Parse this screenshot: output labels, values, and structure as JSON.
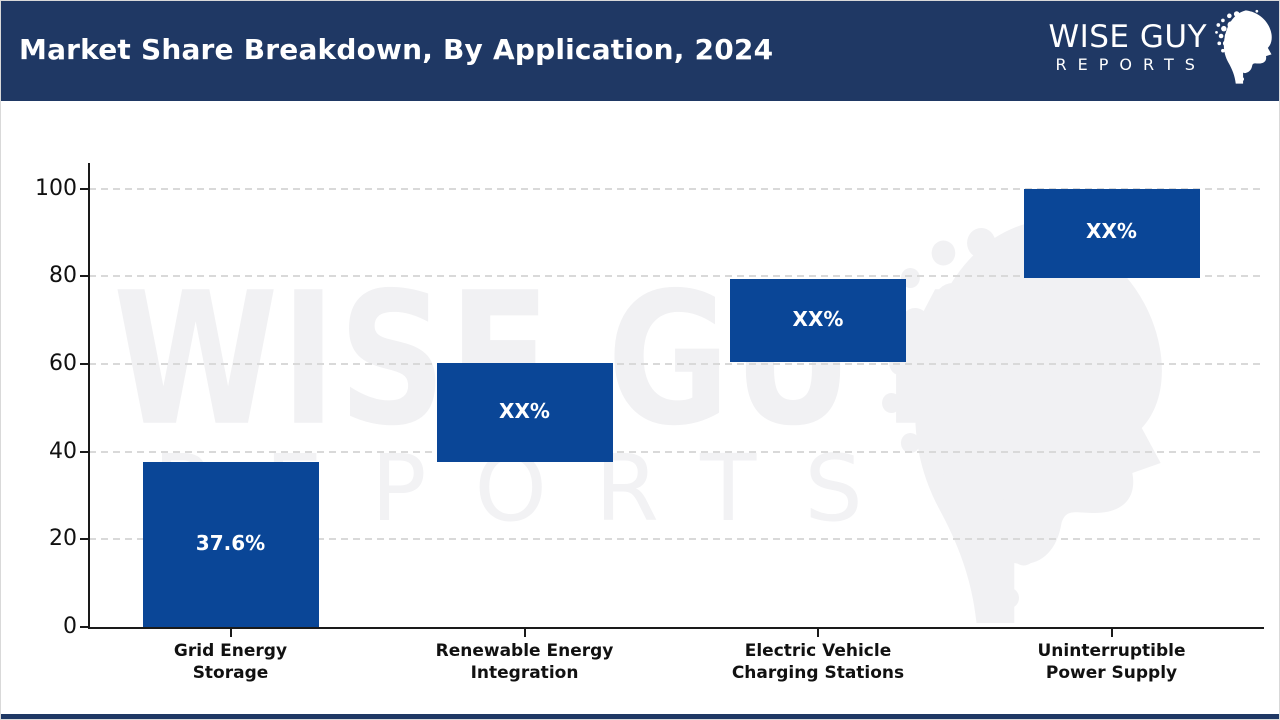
{
  "header": {
    "title": "Market Share Breakdown, By Application, 2024",
    "logo_line1": "WISE GUY",
    "logo_line2": "REPORTS"
  },
  "watermark": {
    "line1": "WISE GUY",
    "line2": "REPORTS"
  },
  "colors": {
    "header_bg": "#1f3864",
    "bar": "#0a4697",
    "gridline": "#d9d9d9",
    "axis": "#1a1a1a",
    "bar_label": "#ffffff",
    "watermark": "#f1f1f3"
  },
  "chart_data": {
    "type": "bar",
    "variant": "waterfall",
    "title": "Market Share Breakdown, By Application, 2024",
    "categories": [
      [
        "Grid Energy",
        "Storage"
      ],
      [
        "Renewable Energy",
        "Integration"
      ],
      [
        "Electric Vehicle",
        "Charging Stations"
      ],
      [
        "Uninterruptible",
        "Power Supply"
      ]
    ],
    "segments": [
      {
        "from": 0,
        "to": 37.6,
        "label": "37.6%"
      },
      {
        "from": 37.6,
        "to": 60.2,
        "label": "XX%"
      },
      {
        "from": 60.4,
        "to": 79.3,
        "label": "XX%"
      },
      {
        "from": 79.6,
        "to": 100,
        "label": "XX%"
      }
    ],
    "ylim": [
      0,
      105
    ],
    "yticks": [
      0,
      20,
      40,
      60,
      80,
      100
    ],
    "xlabel": "",
    "ylabel": "",
    "grid": "horizontal-dashed",
    "legend": "none",
    "bar_color": "#0a4697"
  }
}
